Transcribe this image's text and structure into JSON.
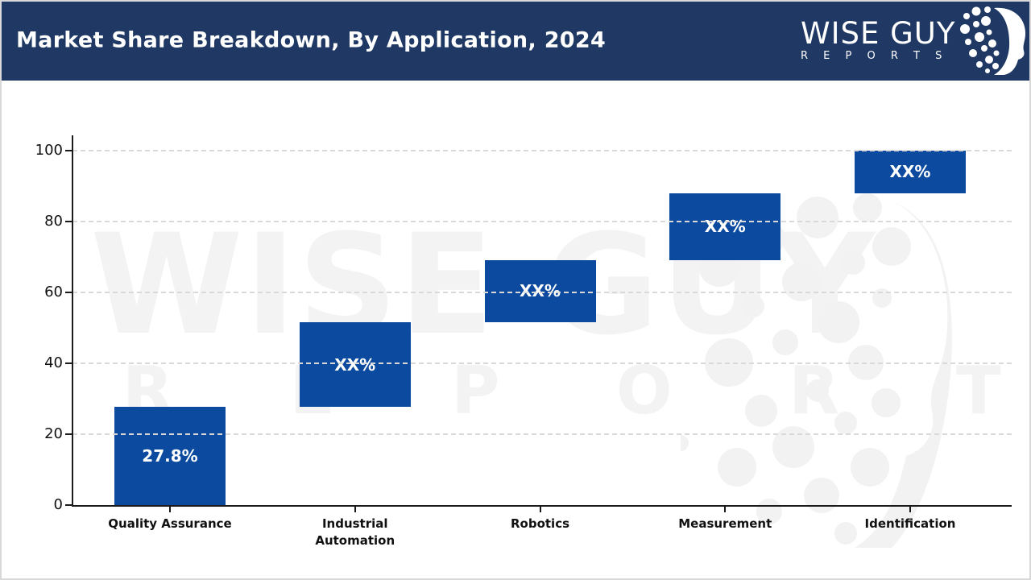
{
  "header": {
    "title": "Market Share Breakdown, By Application, 2024",
    "logo": {
      "line1": "WISE GUY",
      "line2": "R E P O R T S"
    }
  },
  "watermark": {
    "line1": "WISE GUY",
    "line2": "R E P O R T S"
  },
  "colors": {
    "header_bg": "#1f3864",
    "bar": "#0b4a9e",
    "bar_label": "#ffffff",
    "watermark": "#f3f3f3",
    "grid": "#d9d9d9"
  },
  "chart_data": {
    "type": "bar",
    "subtype": "waterfall",
    "title": "Market Share Breakdown, By Application, 2024",
    "categories": [
      "Quality Assurance",
      "Industrial Automation",
      "Robotics",
      "Measurement",
      "Identification"
    ],
    "segments": [
      {
        "category": "Quality Assurance",
        "start": 0,
        "end": 27.8,
        "label": "27.8%"
      },
      {
        "category": "Industrial Automation",
        "start": 27.8,
        "end": 51.5,
        "label": "XX%"
      },
      {
        "category": "Robotics",
        "start": 51.5,
        "end": 69.2,
        "label": "XX%"
      },
      {
        "category": "Measurement",
        "start": 69.2,
        "end": 88.0,
        "label": "XX%"
      },
      {
        "category": "Identification",
        "start": 88.0,
        "end": 100.0,
        "label": "XX%"
      }
    ],
    "yticks": [
      0,
      20,
      40,
      60,
      80,
      100
    ],
    "ylim": [
      0,
      104
    ],
    "xlabel": "",
    "ylabel": "",
    "grid": "horizontal-dashed-over-bars",
    "legend": "none",
    "bar_color": "#0b4a9e",
    "label_color": "#ffffff"
  }
}
